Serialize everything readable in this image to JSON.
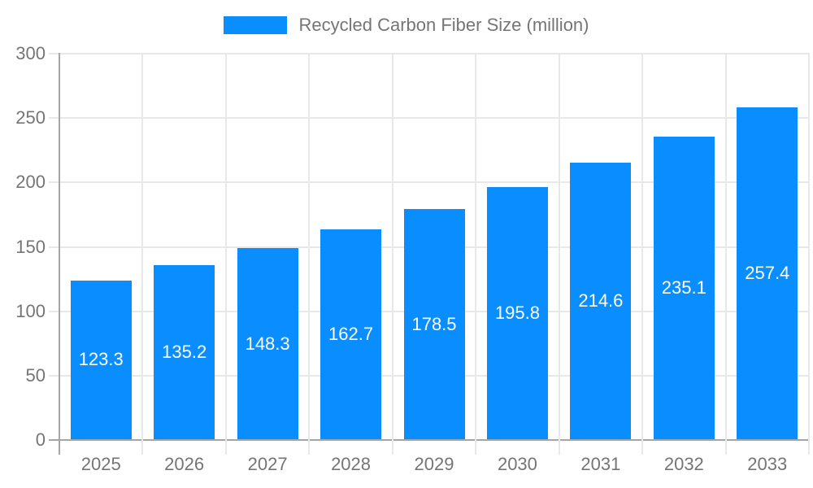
{
  "chart_data": {
    "type": "bar",
    "title": "",
    "series_label": "Recycled Carbon Fiber Size (million)",
    "categories": [
      "2025",
      "2026",
      "2027",
      "2028",
      "2029",
      "2030",
      "2031",
      "2032",
      "2033"
    ],
    "values": [
      123.3,
      135.2,
      148.3,
      162.7,
      178.5,
      195.8,
      214.6,
      235.1,
      257.4
    ],
    "ylim": [
      0,
      300
    ],
    "yticks": [
      0,
      50,
      100,
      150,
      200,
      250,
      300
    ],
    "grid": true,
    "legend_position": "top",
    "colors": {
      "bar": "#0a8eff",
      "bar_label": "#ffffff",
      "axis_line": "#a6a6a6",
      "grid_line": "#e8e8e8",
      "tick_label": "#757575",
      "legend_text": "#757575"
    }
  }
}
